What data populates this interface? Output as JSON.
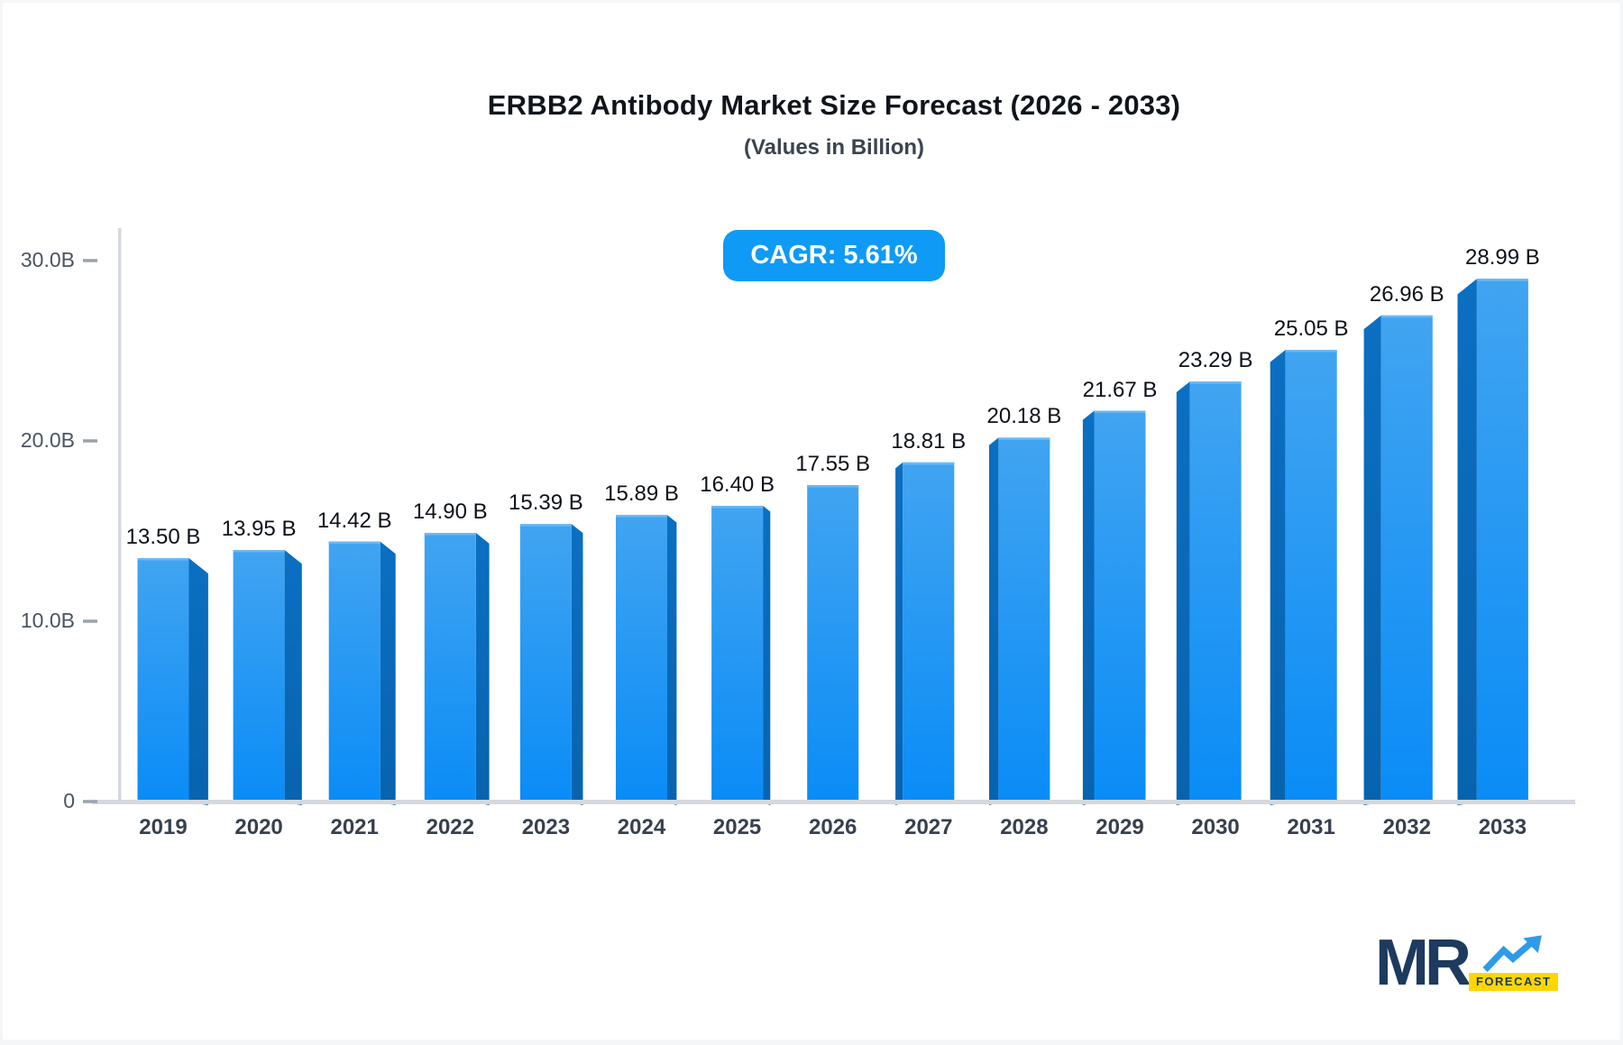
{
  "header": {
    "title": "ERBB2 Antibody Market Size Forecast (2026 - 2033)",
    "subtitle": "(Values in Billion)",
    "cagr_badge": "CAGR: 5.61%"
  },
  "chart_data": {
    "type": "bar",
    "title": "ERBB2 Antibody Market Size Forecast (2026 - 2033)",
    "subtitle": "(Values in Billion)",
    "annotation": "CAGR: 5.61%",
    "categories": [
      "2019",
      "2020",
      "2021",
      "2022",
      "2023",
      "2024",
      "2025",
      "2026",
      "2027",
      "2028",
      "2029",
      "2030",
      "2031",
      "2032",
      "2033"
    ],
    "values": [
      13.5,
      13.95,
      14.42,
      14.9,
      15.39,
      15.89,
      16.4,
      17.55,
      18.81,
      20.18,
      21.67,
      23.29,
      25.05,
      26.96,
      28.99
    ],
    "value_labels": [
      "13.50 B",
      "13.95 B",
      "14.42 B",
      "14.90 B",
      "15.39 B",
      "15.89 B",
      "16.40 B",
      "17.55 B",
      "18.81 B",
      "20.18 B",
      "21.67 B",
      "23.29 B",
      "25.05 B",
      "26.96 B",
      "28.99 B"
    ],
    "xlabel": "",
    "ylabel": "",
    "ylim": [
      0,
      30
    ],
    "y_ticks": [
      {
        "value": 0,
        "label": "0"
      },
      {
        "value": 10,
        "label": "10.0B"
      },
      {
        "value": 20,
        "label": "20.0B"
      },
      {
        "value": 30,
        "label": "30.0B"
      }
    ],
    "grid": false,
    "legend": false,
    "bar_style": "3d-perspective",
    "colors": {
      "bar_face_top": "#41a4f1",
      "bar_face_bottom": "#0a8cf6",
      "bar_face_highlight": "#6cb9f6",
      "bar_side": "#0b6fc2",
      "bar_side_dark": "#0863ae",
      "axis_line": "#d5d8dd",
      "tick_dash": "#9aa2ac",
      "badge": "#0f9af5"
    }
  },
  "logo": {
    "mr": "MR",
    "forecast": "FORECAST",
    "navy": "#1d3a5f",
    "arrow_blue": "#2d9be8",
    "yellow": "#ffd600"
  }
}
